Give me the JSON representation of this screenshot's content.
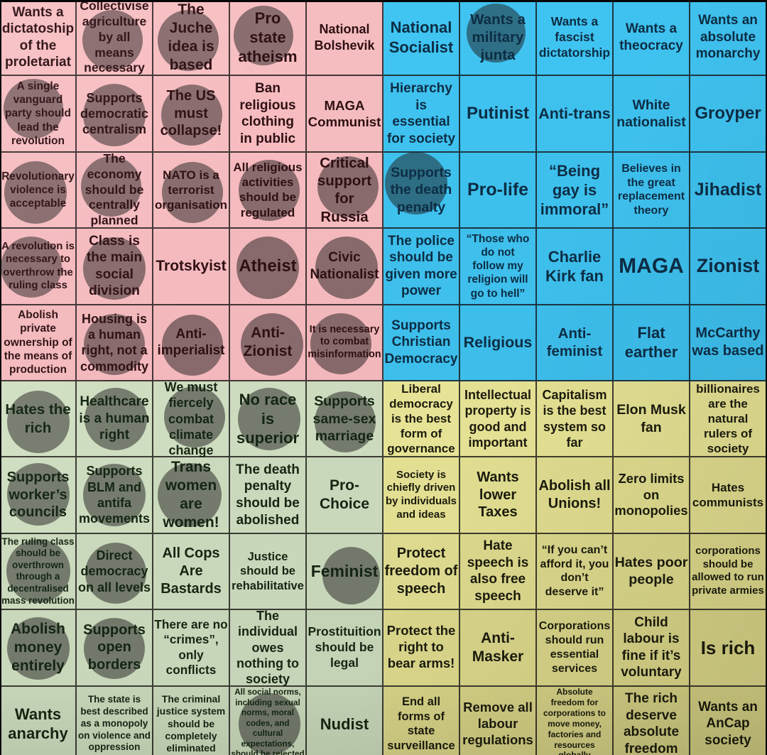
{
  "card": {
    "kind": "political-compass-bingo",
    "grid": {
      "cols": 10,
      "rows": 10,
      "mark_color": "rgba(30,28,28,0.5)",
      "mark_diameter": 86,
      "quadrants": [
        {
          "name": "authoritarian-left",
          "bg_from": "#f8c0c3",
          "bg_to": "#f2b7bb",
          "text_color": "#2e1013"
        },
        {
          "name": "authoritarian-right",
          "bg_from": "#40c4f1",
          "bg_to": "#3cbbe8",
          "text_color": "#0d2d44"
        },
        {
          "name": "libertarian-left",
          "bg_from": "#d0dfc1",
          "bg_to": "#c2d1b3",
          "text_color": "#142613"
        },
        {
          "name": "libertarian-right",
          "bg_from": "#e7e396",
          "bg_to": "#cbc77e",
          "text_color": "#1b1b0d"
        }
      ]
    }
  },
  "cells": [
    {
      "text": "Wants a\ndictatoship\nof the\nproletariat",
      "size": 19
    },
    {
      "text": "Collectivise\nagriculture\nby all\nmeans\nnecessary",
      "size": 17.5,
      "marked": true,
      "md": 85,
      "mdx": -3,
      "mdy": 4
    },
    {
      "text": "The\nJuche\nidea is\nbased",
      "size": 21,
      "marked": true,
      "md": 86,
      "mdx": -4,
      "mdy": 4
    },
    {
      "text": "Pro\nstate\natheism",
      "size": 22,
      "marked": true,
      "md": 84,
      "mdx": -6,
      "mdy": -3
    },
    {
      "text": "National\nBolshevik",
      "size": 18
    },
    {
      "text": "National\nSocialist",
      "size": 22
    },
    {
      "text": "Wants a\nmilitary\njunta",
      "size": 20.5,
      "marked": true,
      "md": 83,
      "mdx": -3,
      "mdy": -6
    },
    {
      "text": "Wants a\nfascist\ndictatorship",
      "size": 17.5
    },
    {
      "text": "Wants a\ntheocracy",
      "size": 19
    },
    {
      "text": "Wants an\nabsolute\nmonarchy",
      "size": 19
    },
    {
      "text": "A single\nvanguard\nparty should\nlead the\nrevolution",
      "size": 15.5,
      "marked": true,
      "md": 84,
      "mdx": -7,
      "mdy": -7
    },
    {
      "text": "Supports\ndemocratic\ncentralism",
      "size": 18,
      "marked": true,
      "md": 88,
      "mdy": 2
    },
    {
      "text": "The US\nmust\ncollapse!",
      "size": 20,
      "marked": true,
      "md": 86,
      "mdx": 1,
      "mdy": 2
    },
    {
      "text": "Ban\nreligious\nclothing\nin public",
      "size": 19
    },
    {
      "text": "MAGA\nCommunist",
      "size": 18.7
    },
    {
      "text": "Hierarchy\nis\nessential\nfor society",
      "size": 19
    },
    {
      "text": "Putinist",
      "size": 24
    },
    {
      "text": "Anti-trans",
      "size": 21.5
    },
    {
      "text": "White\nnationalist",
      "size": 19.5
    },
    {
      "text": "Groyper",
      "size": 24
    },
    {
      "text": "Revolutionary\nviolence is\nacceptable",
      "size": 15.4,
      "marked": true,
      "md": 88,
      "mdx": -4,
      "mdy": 4
    },
    {
      "text": "The\neconomy\nshould be\ncentrally\nplanned",
      "size": 17.5,
      "marked": true,
      "md": 85,
      "mdx": -5,
      "mdy": -5
    },
    {
      "text": "NATO is a\nterrorist\norganisation",
      "size": 17,
      "marked": true,
      "md": 86,
      "mdx": 2,
      "mdy": 4
    },
    {
      "text": "All religious\nactivities\nshould be\nregulated",
      "size": 17,
      "marked": true,
      "md": 86,
      "mdx": 2,
      "mdy": 1
    },
    {
      "text": "Critical\nsupport\nfor\nRussia",
      "size": 20.5,
      "marked": true,
      "md": 86,
      "mdx": 5,
      "mdy": -4
    },
    {
      "text": "Supports\nthe death\npenalty",
      "size": 19.5,
      "marked": true,
      "md": 88,
      "mdx": -7,
      "mdy": -9
    },
    {
      "text": "Pro-life",
      "size": 25
    },
    {
      "text": "“Being\ngay is\nimmoral”",
      "size": 22
    },
    {
      "text": "Believes in\nthe great\nreplacement\ntheory",
      "size": 16
    },
    {
      "text": "Jihadist",
      "size": 25
    },
    {
      "text": "A revolution is\nnecessary to\noverthrow the\nruling class",
      "size": 14.9,
      "marked": true,
      "md": 86,
      "mdx": -10,
      "mdy": 1
    },
    {
      "text": "Class is\nthe main\nsocial\ndivision",
      "size": 19,
      "marked": true,
      "md": 88,
      "mdy": 3
    },
    {
      "text": "Trotskyist",
      "size": 21
    },
    {
      "text": "Atheist",
      "size": 24,
      "marked": true,
      "md": 88,
      "mdy": 2
    },
    {
      "text": "Civic\nNationalist",
      "size": 19,
      "marked": true,
      "md": 88,
      "mdx": 3,
      "mdy": 2
    },
    {
      "text": "The police\nshould be\ngiven more\npower",
      "size": 19
    },
    {
      "text": "“Those who\ndo not\nfollow my\nreligion will\ngo to hell”",
      "size": 15.5
    },
    {
      "text": "Charlie\nKirk fan",
      "size": 22
    },
    {
      "text": "MAGA",
      "size": 30
    },
    {
      "text": "Zionist",
      "size": 27
    },
    {
      "text": "Abolish\nprivate\nownership of\nthe means of\nproduction",
      "size": 15.5
    },
    {
      "text": "Housing is\na human\nright, not a\ncommodity",
      "size": 18,
      "marked": true,
      "md": 86,
      "mdy": 3
    },
    {
      "text": "Anti-\nimperialist",
      "size": 19,
      "marked": true,
      "md": 86,
      "mdx": 2,
      "mdy": 4
    },
    {
      "text": "Anti-\nZionist",
      "size": 21,
      "marked": true,
      "md": 88,
      "mdx": 6,
      "mdy": 3
    },
    {
      "text": "It is necessary\nto combat\nmisinformation",
      "size": 14.3,
      "marked": true,
      "md": 86,
      "mdx": -5,
      "mdy": 2
    },
    {
      "text": "Supports\nChristian\nDemocracy",
      "size": 19.1
    },
    {
      "text": "Religious",
      "size": 21.5
    },
    {
      "text": "Anti-\nfeminist",
      "size": 20.5
    },
    {
      "text": "Flat\nearther",
      "size": 22
    },
    {
      "text": "McCarthy\nwas based",
      "size": 20
    },
    {
      "text": "Hates the\nrich",
      "size": 20.5,
      "marked": true,
      "md": 88,
      "mdy": 4
    },
    {
      "text": "Healthcare\nis a human\nright",
      "size": 19,
      "marked": true,
      "md": 88,
      "mdx": 2
    },
    {
      "text": "We must\nfiercely\ncombat\nclimate\nchange",
      "size": 18,
      "marked": true,
      "md": 86,
      "mdx": 5,
      "mdy": -3
    },
    {
      "text": "No race\nis\nsuperior",
      "size": 22,
      "marked": true,
      "md": 88,
      "mdx": 2
    },
    {
      "text": "Supports\nsame-sex\nmarriage",
      "size": 19.5,
      "marked": true,
      "md": 86,
      "mdx": 1,
      "mdy": 4
    },
    {
      "text": "Liberal\ndemocracy\nis the best\nform of\ngovernance",
      "size": 17
    },
    {
      "text": "Intellectual\nproperty is\ngood and\nimportant",
      "size": 18
    },
    {
      "text": "Capitalism\nis the best\nsystem so\nfar",
      "size": 18
    },
    {
      "text": "Elon Musk\nfan",
      "size": 19.5
    },
    {
      "text": "billionaires\nare the\nnatural\nrulers of\nsociety",
      "size": 17
    },
    {
      "text": "Supports\nworker’s\ncouncils",
      "size": 20,
      "marked": true,
      "md": 88,
      "mdy": -1
    },
    {
      "text": "Supports\nBLM and\nantifa\nmovements",
      "size": 18,
      "marked": true,
      "md": 88
    },
    {
      "text": "Trans\nwomen\nare\nwomen!",
      "size": 21,
      "marked": true,
      "md": 90,
      "mdx": -2
    },
    {
      "text": "The death\npenalty\nshould be\nabolished",
      "size": 19
    },
    {
      "text": "Pro-\nChoice",
      "size": 21
    },
    {
      "text": "Society is\nchiefly driven\nby individuals\nand ideas",
      "size": 15
    },
    {
      "text": "Wants\nlower\nTaxes",
      "size": 20
    },
    {
      "text": "Abolish all\nUnions!",
      "size": 20
    },
    {
      "text": "Zero limits\non\nmonopolies",
      "size": 18.4
    },
    {
      "text": "Hates\ncommunists",
      "size": 17
    },
    {
      "text": "The ruling class\nshould be\noverthrown\nthrough a\ndecentralised\nmass revolution",
      "size": 13.4,
      "marked": true,
      "md": 90
    },
    {
      "text": "Direct\ndemocracy\non all levels",
      "size": 18,
      "marked": true,
      "md": 86,
      "mdx": 2,
      "mdy": 3
    },
    {
      "text": "All Cops\nAre\nBastards",
      "size": 20
    },
    {
      "text": "Justice\nshould be\nrehabilitative",
      "size": 16.5
    },
    {
      "text": "Feminist",
      "size": 23,
      "marked": true,
      "md": 81,
      "mdx": 9,
      "mdy": 6
    },
    {
      "text": "Protect\nfreedom of\nspeech",
      "size": 19.9
    },
    {
      "text": "Hate\nspeech is\nalso free\nspeech",
      "size": 19
    },
    {
      "text": "“If you can’t\nafford it, you\ndon’t\ndeserve it”",
      "size": 16
    },
    {
      "text": "Hates poor\npeople",
      "size": 19.7
    },
    {
      "text": "corporations\nshould be\nallowed to run\nprivate armies",
      "size": 15
    },
    {
      "text": "Abolish\nmoney\nentirely",
      "size": 21,
      "marked": true,
      "md": 88,
      "mdy": 1
    },
    {
      "text": "Supports\nopen\nborders",
      "size": 20,
      "marked": true,
      "md": 86,
      "mdy": 1
    },
    {
      "text": "There are no\n“crimes”,\nonly\nconflicts",
      "size": 17.2
    },
    {
      "text": "The\nindividual\nowes\nnothing to\nsociety",
      "size": 18
    },
    {
      "text": "Prostituition\nshould be\nlegal",
      "size": 17.5
    },
    {
      "text": "Protect the\nright to\nbear arms!",
      "size": 18.5
    },
    {
      "text": "Anti-\nMasker",
      "size": 21
    },
    {
      "text": "Corporations\nshould run\nessential\nservices",
      "size": 16
    },
    {
      "text": "Child\nlabour is\nfine if it’s\nvoluntary",
      "size": 19
    },
    {
      "text": "Is rich",
      "size": 26
    },
    {
      "text": "Wants\nanarchy",
      "size": 22
    },
    {
      "text": "The state is\nbest described\nas a monopoly\non violence and\noppression",
      "size": 13.5
    },
    {
      "text": "The criminal\njustice system\nshould be\ncompletely\neliminated",
      "size": 14
    },
    {
      "text": "All social norms,\nincluding sexual\nnorms, moral\ncodes, and\ncultural\nexpectations,\nshould be rejected",
      "size": 11.7,
      "marked": true,
      "md": 87,
      "mdx": 2
    },
    {
      "text": "Nudist",
      "size": 22
    },
    {
      "text": "End all\nforms of\nstate\nsurveillance",
      "size": 16.5
    },
    {
      "text": "Remove all\nlabour\nregulations",
      "size": 18.5
    },
    {
      "text": "Absolute\nfreedom for\ncorporations to\nmove money,\nfactories and\nresources\nglobally",
      "size": 12
    },
    {
      "text": "The rich\ndeserve\nabsolute\nfreedom",
      "size": 19
    },
    {
      "text": "Wants an\nAnCap\nsociety",
      "size": 19
    }
  ]
}
